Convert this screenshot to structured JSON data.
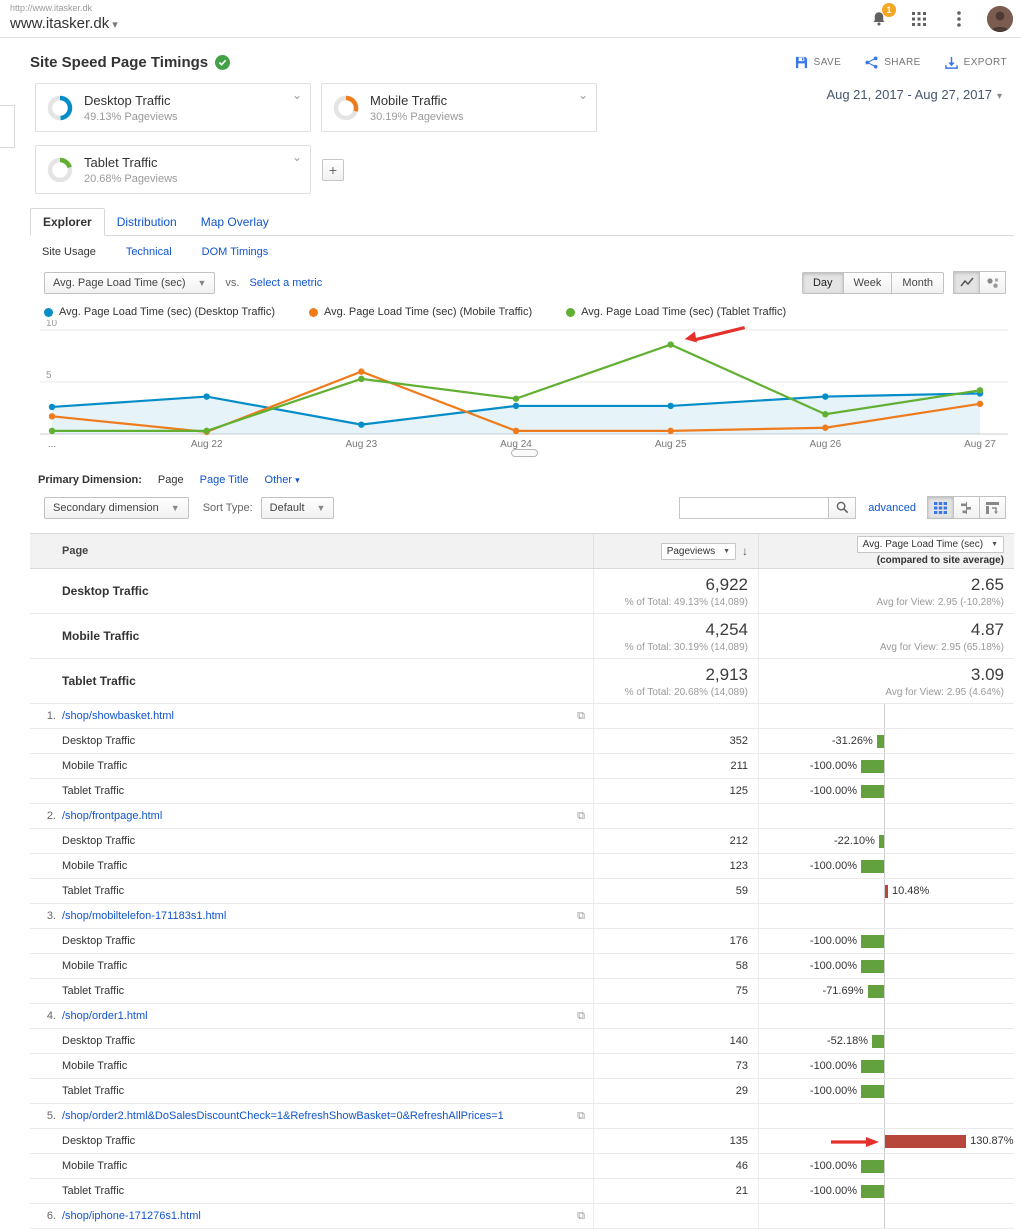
{
  "topbar": {
    "url": "http://www.itasker.dk",
    "account": "www.itasker.dk",
    "notification_count": "1"
  },
  "header": {
    "title": "Site Speed Page Timings",
    "save": "SAVE",
    "share": "SHARE",
    "export": "EXPORT"
  },
  "date_range": "Aug 21, 2017 - Aug 27, 2017",
  "segments": [
    {
      "name": "Desktop Traffic",
      "detail": "49.13% Pageviews",
      "color": "#058dc7",
      "pct": 49.13
    },
    {
      "name": "Mobile Traffic",
      "detail": "30.19% Pageviews",
      "color": "#ee7c1d",
      "pct": 30.19
    },
    {
      "name": "Tablet Traffic",
      "detail": "20.68% Pageviews",
      "color": "#61b032",
      "pct": 20.68
    }
  ],
  "tabs": [
    {
      "label": "Explorer",
      "active": true
    },
    {
      "label": "Distribution",
      "active": false
    },
    {
      "label": "Map Overlay",
      "active": false
    }
  ],
  "subtabs": [
    {
      "label": "Site Usage",
      "active": true
    },
    {
      "label": "Technical",
      "active": false
    },
    {
      "label": "DOM Timings",
      "active": false
    }
  ],
  "metric_bar": {
    "metric": "Avg. Page Load Time (sec)",
    "vs_label": "vs.",
    "select_metric": "Select a metric",
    "granularity": [
      "Day",
      "Week",
      "Month"
    ],
    "active_granularity": "Day"
  },
  "chart_data": {
    "type": "line",
    "x": [
      "...",
      "Aug 22",
      "Aug 23",
      "Aug 24",
      "Aug 25",
      "Aug 26",
      "Aug 27"
    ],
    "ylim": [
      0,
      10
    ],
    "yticks": [
      5,
      10
    ],
    "series": [
      {
        "name": "Avg. Page Load Time (sec) (Desktop Traffic)",
        "color": "#058dc7",
        "area": true,
        "values": [
          2.6,
          3.6,
          0.9,
          2.7,
          2.7,
          3.6,
          3.9
        ]
      },
      {
        "name": "Avg. Page Load Time (sec) (Mobile Traffic)",
        "color": "#ee7c1d",
        "area": false,
        "values": [
          1.7,
          0.2,
          6.0,
          0.3,
          0.3,
          0.6,
          2.9
        ]
      },
      {
        "name": "Avg. Page Load Time (sec) (Tablet Traffic)",
        "color": "#61b032",
        "area": false,
        "values": [
          0.3,
          0.3,
          5.3,
          3.4,
          8.6,
          1.9,
          4.2
        ]
      }
    ],
    "annotation": {
      "type": "arrow",
      "series": 2,
      "index": 4
    }
  },
  "primary_dimension": {
    "label": "Primary Dimension:",
    "options": [
      {
        "label": "Page",
        "active": true
      },
      {
        "label": "Page Title",
        "active": false
      },
      {
        "label": "Other",
        "active": false
      }
    ]
  },
  "toolbar": {
    "secondary_dimension": "Secondary dimension",
    "sort_type_label": "Sort Type:",
    "sort_type_value": "Default",
    "search_value": "",
    "advanced_label": "advanced"
  },
  "table": {
    "headers": {
      "page": "Page",
      "pageviews": "Pageviews",
      "avg_metric": "Avg. Page Load Time (sec)",
      "avg_note": "(compared to site average)"
    },
    "bar_colors": {
      "positive": "#b6473a",
      "negative": "#63a13e"
    },
    "summary": [
      {
        "name": "Desktop Traffic",
        "pageviews": "6,922",
        "pageviews_note": "% of Total: 49.13% (14,089)",
        "avg": "2.65",
        "avg_note": "Avg for View: 2.95 (-10.28%)"
      },
      {
        "name": "Mobile Traffic",
        "pageviews": "4,254",
        "pageviews_note": "% of Total: 30.19% (14,089)",
        "avg": "4.87",
        "avg_note": "Avg for View: 2.95 (65.18%)"
      },
      {
        "name": "Tablet Traffic",
        "pageviews": "2,913",
        "pageviews_note": "% of Total: 20.68% (14,089)",
        "avg": "3.09",
        "avg_note": "Avg for View: 2.95 (4.64%)"
      }
    ],
    "rows": [
      {
        "index": "1.",
        "page": "/shop/showbasket.html",
        "segments": [
          {
            "name": "Desktop Traffic",
            "pageviews": "352",
            "delta_pct": -31.26,
            "delta_label": "-31.26%"
          },
          {
            "name": "Mobile Traffic",
            "pageviews": "211",
            "delta_pct": -100,
            "delta_label": "-100.00%"
          },
          {
            "name": "Tablet Traffic",
            "pageviews": "125",
            "delta_pct": -100,
            "delta_label": "-100.00%"
          }
        ]
      },
      {
        "index": "2.",
        "page": "/shop/frontpage.html",
        "segments": [
          {
            "name": "Desktop Traffic",
            "pageviews": "212",
            "delta_pct": -22.1,
            "delta_label": "-22.10%"
          },
          {
            "name": "Mobile Traffic",
            "pageviews": "123",
            "delta_pct": -100,
            "delta_label": "-100.00%"
          },
          {
            "name": "Tablet Traffic",
            "pageviews": "59",
            "delta_pct": 10.48,
            "delta_label": "10.48%"
          }
        ]
      },
      {
        "index": "3.",
        "page": "/shop/mobiltelefon-171183s1.html",
        "segments": [
          {
            "name": "Desktop Traffic",
            "pageviews": "176",
            "delta_pct": -100,
            "delta_label": "-100.00%"
          },
          {
            "name": "Mobile Traffic",
            "pageviews": "58",
            "delta_pct": -100,
            "delta_label": "-100.00%"
          },
          {
            "name": "Tablet Traffic",
            "pageviews": "75",
            "delta_pct": -71.69,
            "delta_label": "-71.69%"
          }
        ]
      },
      {
        "index": "4.",
        "page": "/shop/order1.html",
        "segments": [
          {
            "name": "Desktop Traffic",
            "pageviews": "140",
            "delta_pct": -52.18,
            "delta_label": "-52.18%"
          },
          {
            "name": "Mobile Traffic",
            "pageviews": "73",
            "delta_pct": -100,
            "delta_label": "-100.00%"
          },
          {
            "name": "Tablet Traffic",
            "pageviews": "29",
            "delta_pct": -100,
            "delta_label": "-100.00%"
          }
        ]
      },
      {
        "index": "5.",
        "page": "/shop/order2.html&DoSalesDiscountCheck=1&RefreshShowBasket=0&RefreshAllPrices=1",
        "segments": [
          {
            "name": "Desktop Traffic",
            "pageviews": "135",
            "delta_pct": 130.87,
            "delta_label": "130.87%",
            "arrow": true
          },
          {
            "name": "Mobile Traffic",
            "pageviews": "46",
            "delta_pct": -100,
            "delta_label": "-100.00%"
          },
          {
            "name": "Tablet Traffic",
            "pageviews": "21",
            "delta_pct": -100,
            "delta_label": "-100.00%"
          }
        ]
      },
      {
        "index": "6.",
        "page": "/shop/iphone-171276s1.html",
        "segments": []
      }
    ]
  }
}
